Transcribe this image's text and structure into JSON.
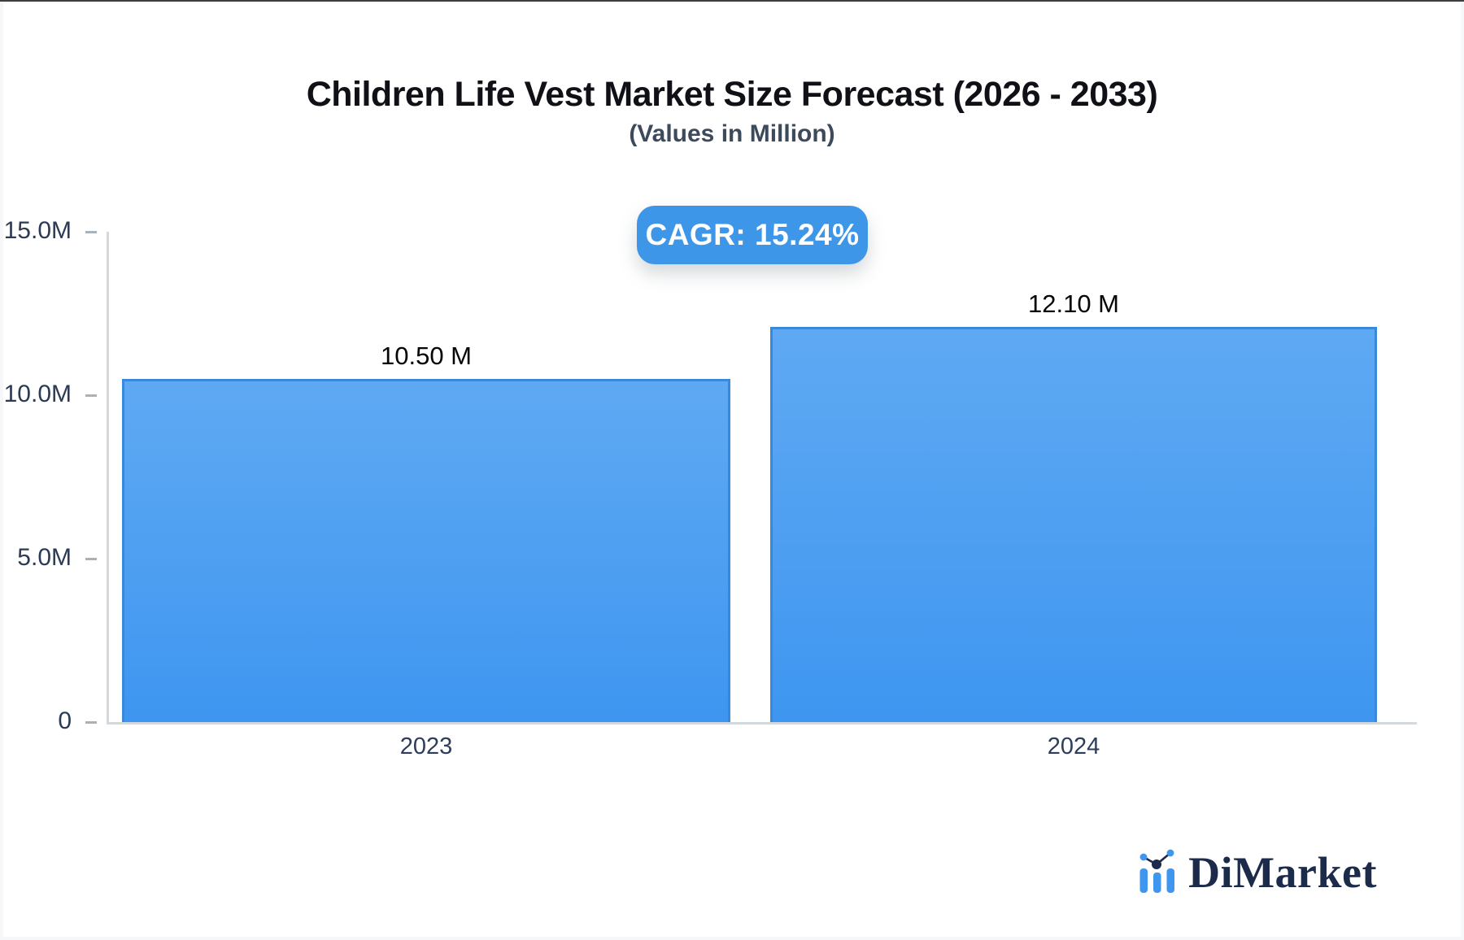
{
  "page": {
    "title": "Children Life Vest Market Size Forecast (2026 - 2033)",
    "subtitle": "(Values in Million)",
    "cagr_badge_label": "CAGR: 15.24%"
  },
  "chart_data": {
    "type": "bar",
    "title": "Children Life Vest Market Size Forecast (2026 - 2033)",
    "subtitle": "(Values in Million)",
    "unit": "Million",
    "cagr_percent": 15.24,
    "categories": [
      "2023",
      "2024"
    ],
    "values": [
      10.5,
      12.1
    ],
    "bar_labels": [
      "10.50 M",
      "12.10 M"
    ],
    "ylim": [
      0,
      15
    ],
    "yticks": [
      {
        "value": 0,
        "label": "0"
      },
      {
        "value": 5,
        "label": "5.0M"
      },
      {
        "value": 10,
        "label": "10.0M"
      },
      {
        "value": 15,
        "label": "15.0M"
      }
    ],
    "grid": false,
    "legend_position": "none",
    "colors": {
      "bar_gradient_top": "#5fa9f3",
      "bar_gradient_bottom": "#3e96f0",
      "bar_border": "#3889dc",
      "badge_background": "#3e96e9",
      "badge_text": "#ffffff",
      "axis_line": "#d4d9de",
      "tick_dash": "#a9b1b9",
      "tick_label": "#2b3a55",
      "title_text": "#101116",
      "subtitle_text": "#3d4a5c",
      "value_label_text": "#050505"
    }
  },
  "branding": {
    "logo_text": "DiMarket",
    "logo_icon": "bar-chart-logo-icon",
    "logo_text_color": "#1c2b4a",
    "logo_icon_blue": "#3e96ee",
    "logo_icon_navy": "#1c2b4a"
  }
}
